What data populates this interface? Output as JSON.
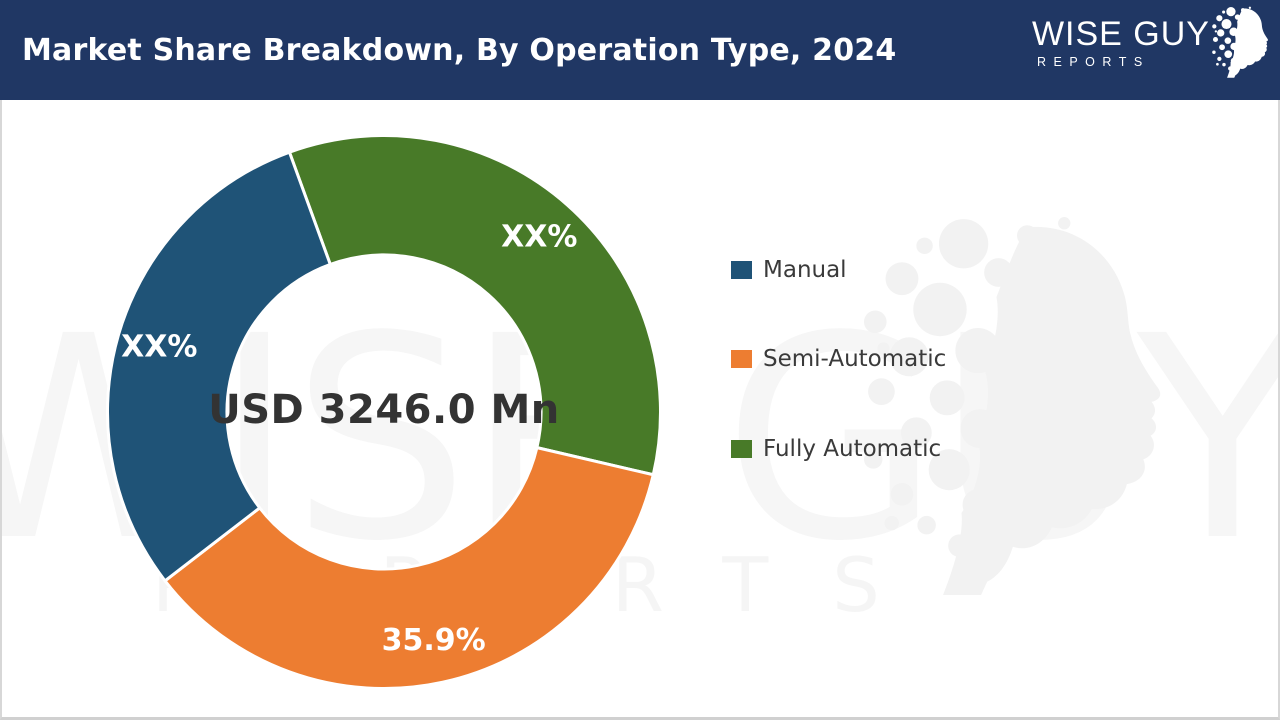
{
  "header": {
    "title": "Market Share Breakdown, By Operation Type, 2024",
    "logo": {
      "line1": "WISE GUY",
      "line2": "REPORTS"
    }
  },
  "watermark": {
    "line1": "WISE GUY",
    "line2": "REPORTS"
  },
  "chart_data": {
    "type": "pie",
    "subtype": "donut",
    "title": "Market Share Breakdown, By Operation Type, 2024",
    "center_label": "USD 3246.0 Mn",
    "legend_position": "right",
    "start_angle_deg": -20,
    "inner_radius_ratio": 0.565,
    "segments": [
      {
        "name": "Fully Automatic",
        "display_label": "XX%",
        "percent_est": 34.2,
        "value_shown": false,
        "color": "#487A28"
      },
      {
        "name": "Semi-Automatic",
        "display_label": "35.9%",
        "percent_est": 35.9,
        "value_shown": true,
        "color": "#ED7D31"
      },
      {
        "name": "Manual",
        "display_label": "XX%",
        "percent_est": 29.9,
        "value_shown": false,
        "color": "#1F5377"
      }
    ],
    "legend": [
      {
        "label": "Manual",
        "color": "#1F5377"
      },
      {
        "label": "Semi-Automatic",
        "color": "#ED7D31"
      },
      {
        "label": "Fully Automatic",
        "color": "#487A28"
      }
    ]
  },
  "colors": {
    "header_bg": "#203764",
    "title_text": "#ffffff",
    "segment_gap": "#ffffff",
    "segment_label_text": "#ffffff",
    "center_text": "#333333",
    "legend_text": "#3a3a3a",
    "watermark": "#f4f4f4",
    "frame_border": "#d7d7d7"
  }
}
